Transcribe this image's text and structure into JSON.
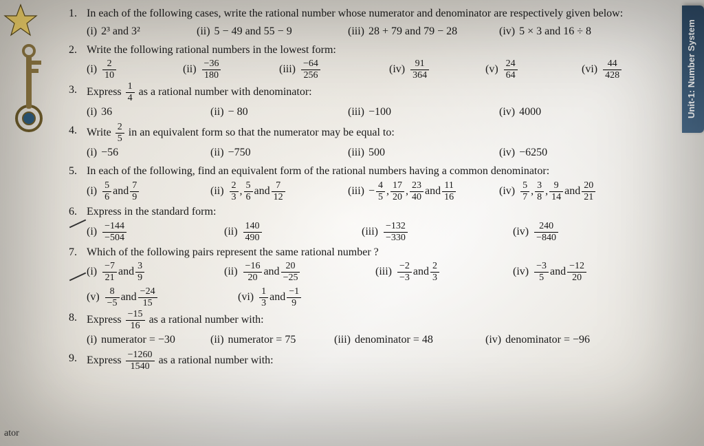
{
  "sideTab": "Unit-1: Number System",
  "footerFragment": "ator",
  "questions": {
    "q1": {
      "num": "1.",
      "text_a": "In each of the following cases, write the rational number whose numerator and denominator are respectively given below:",
      "opts": [
        {
          "lab": "(i)",
          "val": "2³ and 3²"
        },
        {
          "lab": "(ii)",
          "val": "5 − 49 and 55 − 9"
        },
        {
          "lab": "(iii)",
          "val": "28 + 79 and 79 − 28"
        },
        {
          "lab": "(iv)",
          "val": "5 × 3 and 16 ÷ 8"
        }
      ]
    },
    "q2": {
      "num": "2.",
      "text": "Write the following rational numbers in the lowest form:",
      "opts": [
        {
          "lab": "(i)",
          "n": "2",
          "d": "10"
        },
        {
          "lab": "(ii)",
          "n": "−36",
          "d": "180"
        },
        {
          "lab": "(iii)",
          "n": "−64",
          "d": "256"
        },
        {
          "lab": "(iv)",
          "n": "91",
          "d": "364"
        },
        {
          "lab": "(v)",
          "n": "24",
          "d": "64"
        },
        {
          "lab": "(vi)",
          "n": "44",
          "d": "428"
        }
      ]
    },
    "q3": {
      "num": "3.",
      "text_a": "Express ",
      "frac": {
        "n": "1",
        "d": "4"
      },
      "text_b": " as a rational number with denominator:",
      "opts": [
        {
          "lab": "(i)",
          "val": "36"
        },
        {
          "lab": "(ii)",
          "val": "− 80"
        },
        {
          "lab": "(iii)",
          "val": "−100"
        },
        {
          "lab": "(iv)",
          "val": "4000"
        }
      ]
    },
    "q4": {
      "num": "4.",
      "text_a": "Write ",
      "frac": {
        "n": "2",
        "d": "5"
      },
      "text_b": " in an equivalent form so that the numerator may be equal to:",
      "opts": [
        {
          "lab": "(i)",
          "val": "−56"
        },
        {
          "lab": "(ii)",
          "val": "−750"
        },
        {
          "lab": "(iii)",
          "val": "500"
        },
        {
          "lab": "(iv)",
          "val": "−6250"
        }
      ]
    },
    "q5": {
      "num": "5.",
      "text": "In each of the following, find an equivalent form of the rational numbers having a common denominator:",
      "opts": [
        {
          "lab": "(i)",
          "fracs": [
            {
              "n": "5",
              "d": "6"
            },
            {
              "n": "7",
              "d": "9"
            }
          ],
          "joiner": " and "
        },
        {
          "lab": "(ii)",
          "fracs": [
            {
              "n": "2",
              "d": "3"
            },
            {
              "n": "5",
              "d": "6"
            },
            {
              "n": "7",
              "d": "12"
            }
          ],
          "joiner": ", ",
          "last": " and "
        },
        {
          "lab": "(iii)",
          "fracs": [
            {
              "n": "4",
              "d": "5",
              "neg": true
            },
            {
              "n": "17",
              "d": "20"
            },
            {
              "n": "23",
              "d": "40"
            },
            {
              "n": "11",
              "d": "16"
            }
          ],
          "joiner": ", ",
          "last": " and "
        },
        {
          "lab": "(iv)",
          "fracs": [
            {
              "n": "5",
              "d": "7"
            },
            {
              "n": "3",
              "d": "8"
            },
            {
              "n": "9",
              "d": "14"
            },
            {
              "n": "20",
              "d": "21"
            }
          ],
          "joiner": ", ",
          "last": " and "
        }
      ]
    },
    "q6": {
      "num": "6.",
      "crossed": true,
      "text": "Express in the standard form:",
      "opts": [
        {
          "lab": "(i)",
          "n": "−144",
          "d": "−504"
        },
        {
          "lab": "(ii)",
          "n": "140",
          "d": "490"
        },
        {
          "lab": "(iii)",
          "n": "−132",
          "d": "−330"
        },
        {
          "lab": "(iv)",
          "n": "240",
          "d": "−840"
        }
      ]
    },
    "q7": {
      "num": "7.",
      "crossed": true,
      "text": "Which of the following pairs represent the same rational number ?",
      "opts": [
        {
          "lab": "(i)",
          "a": {
            "n": "−7",
            "d": "21"
          },
          "b": {
            "n": "3",
            "d": "9"
          }
        },
        {
          "lab": "(ii)",
          "a": {
            "n": "−16",
            "d": "20"
          },
          "b": {
            "n": "20",
            "d": "−25"
          }
        },
        {
          "lab": "(iii)",
          "a": {
            "n": "−2",
            "d": "−3"
          },
          "b": {
            "n": "2",
            "d": "3"
          }
        },
        {
          "lab": "(iv)",
          "a": {
            "n": "−3",
            "d": "5"
          },
          "b": {
            "n": "−12",
            "d": "20"
          }
        },
        {
          "lab": "(v)",
          "a": {
            "n": "8",
            "d": "−5"
          },
          "b": {
            "n": "−24",
            "d": "15"
          }
        },
        {
          "lab": "(vi)",
          "a": {
            "n": "1",
            "d": "3"
          },
          "b": {
            "n": "−1",
            "d": "9"
          }
        }
      ]
    },
    "q8": {
      "num": "8.",
      "text_a": "Express ",
      "frac": {
        "n": "−15",
        "d": "16"
      },
      "text_b": " as a rational number with:",
      "opts": [
        {
          "lab": "(i)",
          "val": "numerator = −30"
        },
        {
          "lab": "(ii)",
          "val": "numerator = 75"
        },
        {
          "lab": "(iii)",
          "val": "denominator = 48"
        },
        {
          "lab": "(iv)",
          "val": "denominator = −96"
        }
      ]
    },
    "q9": {
      "num": "9.",
      "text_a": "Express ",
      "frac": {
        "n": "−1260",
        "d": "1540"
      },
      "text_b": " as a rational number with:"
    }
  }
}
